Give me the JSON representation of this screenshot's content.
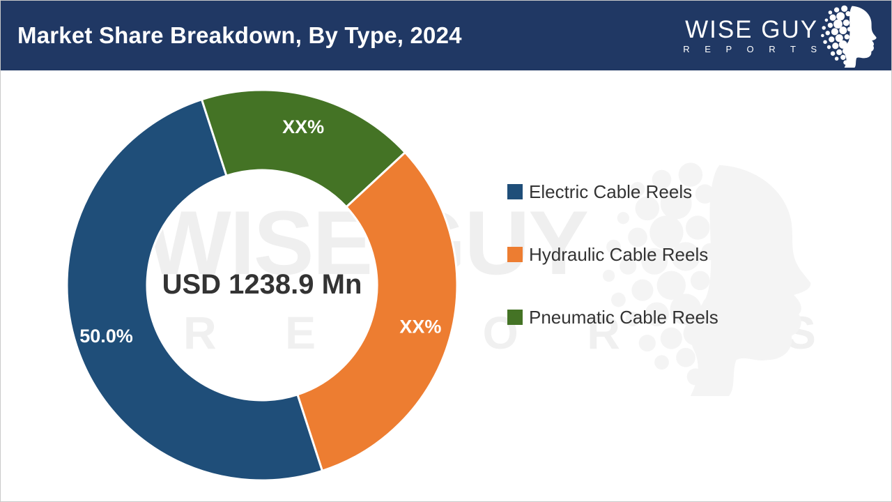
{
  "header": {
    "title": "Market Share Breakdown, By Type, 2024",
    "bg_color": "#203864",
    "logo": {
      "line1": "WISE GUY",
      "line2": "R E P O R T S"
    }
  },
  "watermark": {
    "line1": "WISE GUY",
    "line2": "R E P O R T S"
  },
  "chart_data": {
    "type": "pie",
    "donut": true,
    "title": "Market Share Breakdown, By Type, 2024",
    "center_label": "USD 1238.9 Mn",
    "legend_position": "right",
    "start_angle_deg": 162,
    "draw_order": [
      0,
      2,
      1
    ],
    "slices": [
      {
        "id": "electric-cable-reels",
        "legend_label": "Electric Cable Reels",
        "value": 50.0,
        "display_label": "50.0%",
        "color": "#1F4E79"
      },
      {
        "id": "hydraulic-cable-reels",
        "legend_label": "Hydraulic Cable Reels",
        "value": 31.9,
        "display_label": "XX%",
        "color": "#ED7D31"
      },
      {
        "id": "pneumatic-cable-reels",
        "legend_label": "Pneumatic Cable Reels",
        "value": 18.1,
        "display_label": "XX%",
        "color": "#447325"
      }
    ]
  }
}
